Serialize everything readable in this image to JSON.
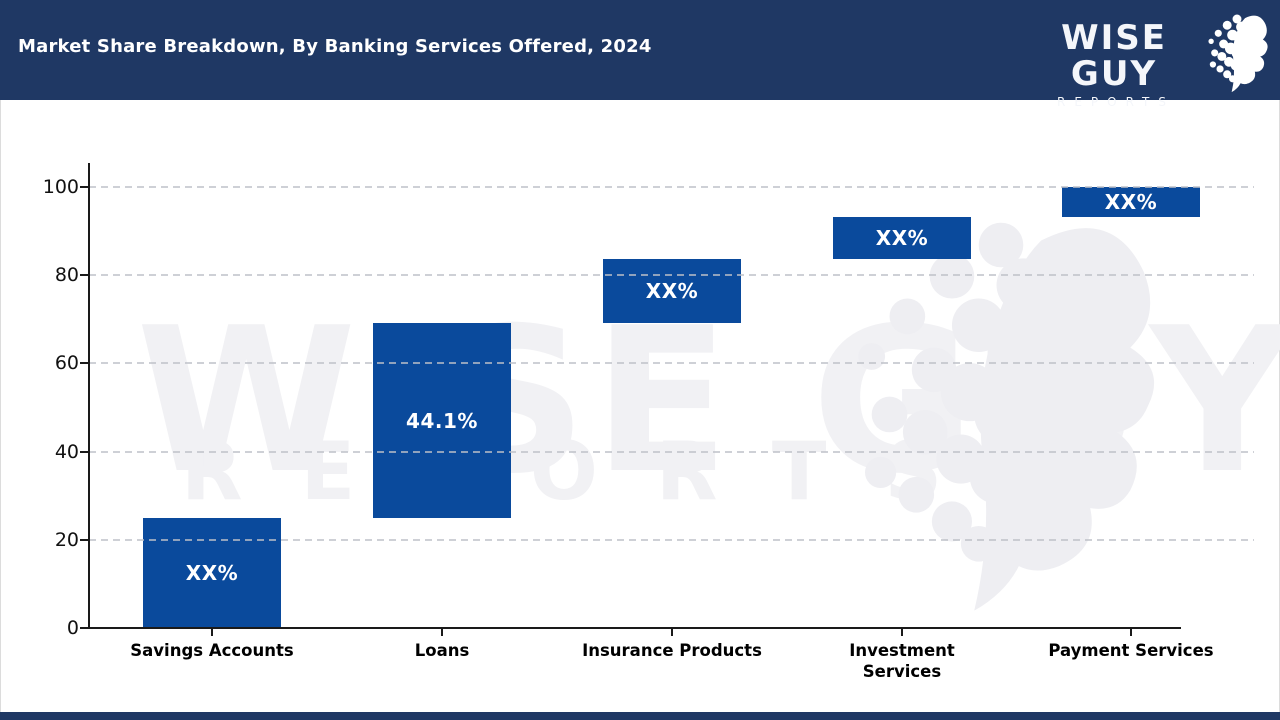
{
  "header": {
    "title": "Market Share Breakdown, By Banking Services Offered, 2024",
    "logo": {
      "line1": "WISE GUY",
      "line2": "REPORTS"
    }
  },
  "watermark": {
    "line1": "WISE GUY",
    "line2": "REPORTS"
  },
  "colors": {
    "header_bg": "#1f3864",
    "bar": "#0a4a9c",
    "grid": "#d9d9d9",
    "axis": "#1a1a1a",
    "watermark": "#f1f1f4"
  },
  "chart_data": {
    "type": "bar",
    "subtype": "waterfall",
    "title": "Market Share Breakdown, By Banking Services Offered, 2024",
    "categories": [
      "Savings Accounts",
      "Loans",
      "Insurance Products",
      "Investment\nServices",
      "Payment Services"
    ],
    "segments": [
      {
        "category": "Savings Accounts",
        "label": "XX%",
        "start": 0,
        "end": 25
      },
      {
        "category": "Loans",
        "label": "44.1%",
        "start": 25,
        "end": 69.1
      },
      {
        "category": "Insurance Products",
        "label": "XX%",
        "start": 69.1,
        "end": 83.6
      },
      {
        "category": "Investment Services",
        "label": "XX%",
        "start": 83.6,
        "end": 93.1
      },
      {
        "category": "Payment Services",
        "label": "XX%",
        "start": 93.1,
        "end": 100
      }
    ],
    "xlabel": "",
    "ylabel": "",
    "y_ticks": [
      0,
      20,
      40,
      60,
      80,
      100
    ],
    "ylim": [
      0,
      105
    ],
    "grid": "horizontal-dashed",
    "legend": "none"
  }
}
